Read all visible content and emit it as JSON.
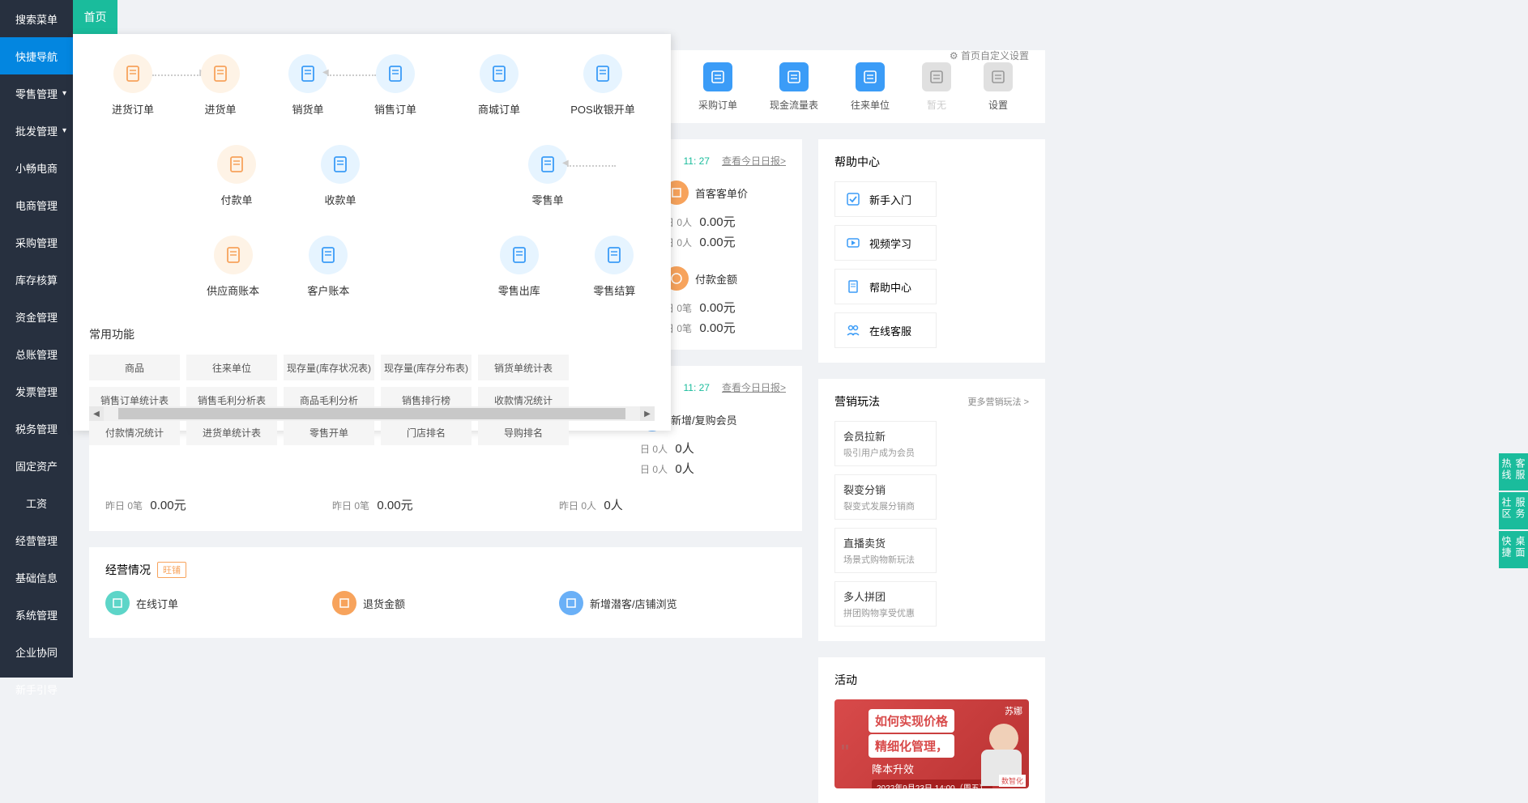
{
  "sidebar": {
    "search": "搜索菜单",
    "items": [
      {
        "label": "快捷导航",
        "active": true
      },
      {
        "label": "零售管理",
        "arrow": true
      },
      {
        "label": "批发管理",
        "arrow": true
      },
      {
        "label": "小畅电商"
      },
      {
        "label": "电商管理"
      },
      {
        "label": "采购管理"
      },
      {
        "label": "库存核算"
      },
      {
        "label": "资金管理"
      },
      {
        "label": "总账管理"
      },
      {
        "label": "发票管理"
      },
      {
        "label": "税务管理"
      },
      {
        "label": "固定资产"
      },
      {
        "label": "工资"
      },
      {
        "label": "经营管理"
      },
      {
        "label": "基础信息"
      },
      {
        "label": "系统管理"
      },
      {
        "label": "企业协同"
      },
      {
        "label": "新手引导"
      }
    ]
  },
  "topTab": {
    "home": "首页"
  },
  "flyout": {
    "row1": [
      {
        "label": "进货订单",
        "color": "orange"
      },
      {
        "label": "进货单",
        "color": "orange"
      },
      {
        "label": "销货单",
        "color": "blue"
      },
      {
        "label": "销售订单",
        "color": "blue"
      },
      {
        "label": "商城订单",
        "color": "blue"
      },
      {
        "label": "POS收银开单",
        "color": "blue"
      }
    ],
    "row2": [
      {
        "label": "付款单",
        "color": "orange"
      },
      {
        "label": "收款单",
        "color": "blue"
      },
      {
        "label": "零售单",
        "color": "blue"
      }
    ],
    "row3": [
      {
        "label": "供应商账本",
        "color": "orange"
      },
      {
        "label": "客户账本",
        "color": "blue"
      },
      {
        "label": "零售出库",
        "color": "blue"
      },
      {
        "label": "零售结算",
        "color": "blue"
      }
    ],
    "commonTitle": "常用功能",
    "buttons": [
      "商品",
      "往来单位",
      "现存量(库存状况表)",
      "现存量(库存分布表)",
      "销货单统计表",
      "销售订单统计表",
      "销售毛利分析表",
      "商品毛利分析",
      "销售排行榜",
      "收款情况统计",
      "付款情况统计",
      "进货单统计表",
      "零售开单",
      "门店排名",
      "导购排名"
    ]
  },
  "iconBar": {
    "settingsLink": "⚙ 首页自定义设置",
    "items": [
      {
        "label": "采购订单",
        "color": "blue"
      },
      {
        "label": "现金流量表",
        "color": "blue"
      },
      {
        "label": "往来单位",
        "color": "blue"
      },
      {
        "label": "暂无",
        "color": "gray",
        "disabled": true
      },
      {
        "label": "设置",
        "color": "gray"
      }
    ]
  },
  "dataCard1": {
    "ts": "11: 27",
    "link": "查看今日日报>",
    "stats": [
      {
        "title": "首客客单价",
        "lines": [
          {
            "prefix": "日",
            "count": "0人",
            "val": "0.00元"
          },
          {
            "prefix": "日",
            "count": "0人",
            "val": "0.00元"
          }
        ]
      },
      {
        "title": "付款金额",
        "lines": [
          {
            "prefix": "日",
            "count": "0笔",
            "val": "0.00元"
          },
          {
            "prefix": "日",
            "count": "0笔",
            "val": "0.00元"
          }
        ]
      }
    ]
  },
  "dataCard2": {
    "ts": "11: 27",
    "link": "查看今日日报>",
    "stats": [
      {
        "title": "新增/复购会员",
        "lines": [
          {
            "prefix": "日",
            "count": "0人",
            "val": "0人"
          },
          {
            "prefix": "日",
            "count": "0人",
            "val": "0人"
          }
        ]
      }
    ],
    "bottom": [
      {
        "prefix": "昨日",
        "count": "0笔",
        "val": "0.00元"
      },
      {
        "prefix": "昨日",
        "count": "0笔",
        "val": "0.00元"
      },
      {
        "prefix": "昨日",
        "count": "0人",
        "val": "0人"
      }
    ]
  },
  "situation": {
    "title": "经营情况",
    "badge": "旺铺",
    "items": [
      {
        "icon": "teal",
        "label": "在线订单"
      },
      {
        "icon": "orange",
        "label": "退货金额"
      },
      {
        "icon": "blue",
        "label": "新增潜客/店铺浏览"
      }
    ]
  },
  "helpCenter": {
    "title": "帮助中心",
    "items": [
      {
        "label": "新手入门",
        "icon": "check"
      },
      {
        "label": "视频学习",
        "icon": "play"
      },
      {
        "label": "帮助中心",
        "icon": "doc"
      },
      {
        "label": "在线客服",
        "icon": "people"
      }
    ]
  },
  "marketing": {
    "title": "营销玩法",
    "more": "更多营销玩法 >",
    "items": [
      {
        "t": "会员拉新",
        "s": "吸引用户成为会员"
      },
      {
        "t": "裂变分销",
        "s": "裂变式发展分销商"
      },
      {
        "t": "直播卖货",
        "s": "场景式购物新玩法"
      },
      {
        "t": "多人拼团",
        "s": "拼团购物享受优惠"
      }
    ]
  },
  "activity": {
    "title": "活动",
    "banner": {
      "line1": "如何实现价格",
      "line2": "精细化管理，",
      "line3": "降本升效",
      "date": "2022年9月23日 14:00（周五）",
      "name": "苏娜",
      "role": "数智化"
    }
  },
  "sideTabs": [
    "客服热线",
    "服务社区",
    "桌面快捷"
  ]
}
